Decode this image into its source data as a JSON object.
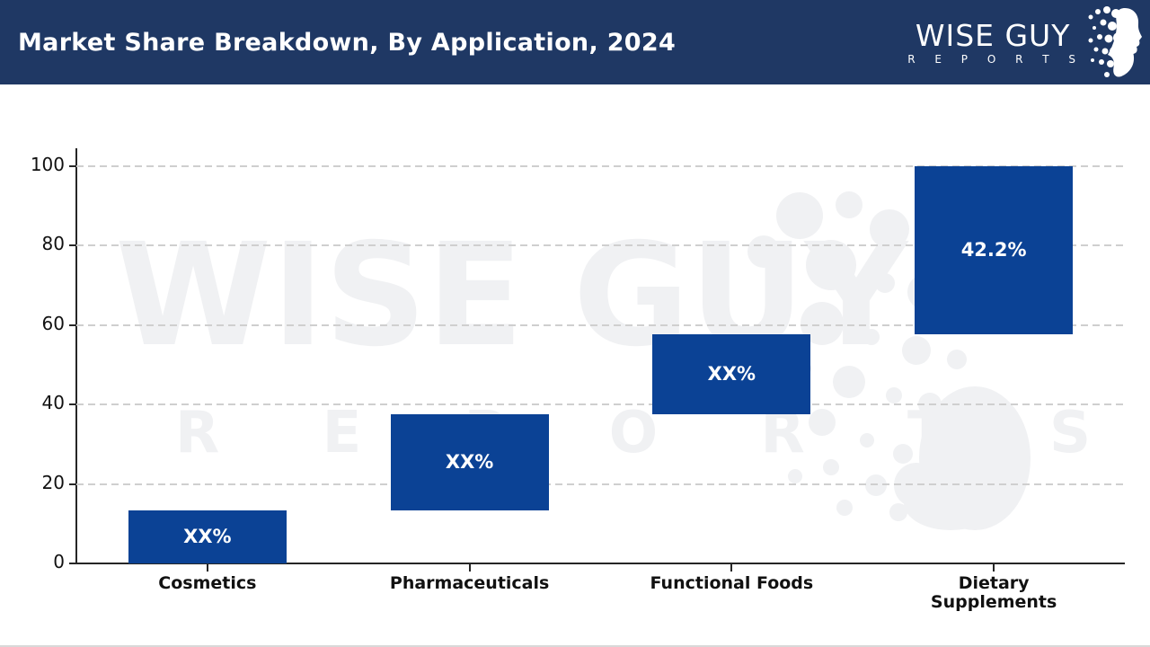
{
  "header": {
    "title": "Market Share Breakdown, By Application, 2024",
    "logo": {
      "line1": "WISE GUY",
      "line2": "R E P O R T S",
      "icon": "face-profile-dots-icon"
    }
  },
  "watermark": {
    "line1": "WISE GUY",
    "line2": "R E P O R T S",
    "icon": "face-profile-dots-icon"
  },
  "colors": {
    "header_bg": "#1f3864",
    "bar": "#0b4295",
    "watermark": "#f0f1f3",
    "gridline": "#cfcfcf",
    "axis": "#262626",
    "bar_label_text": "#ffffff",
    "title_text": "#ffffff"
  },
  "chart_data": {
    "type": "bar",
    "subtype": "waterfall",
    "title": "Market Share Breakdown, By Application, 2024",
    "categories": [
      "Cosmetics",
      "Pharmaceuticals",
      "Functional Foods",
      "Dietary Supplements"
    ],
    "segments": [
      {
        "category": "Cosmetics",
        "start": 0,
        "end": 13.3,
        "value": 13.3,
        "label": "XX%"
      },
      {
        "category": "Pharmaceuticals",
        "start": 13.3,
        "end": 37.5,
        "value": 24.2,
        "label": "XX%"
      },
      {
        "category": "Functional Foods",
        "start": 37.5,
        "end": 57.8,
        "value": 20.3,
        "label": "XX%"
      },
      {
        "category": "Dietary Supplements",
        "start": 57.8,
        "end": 100,
        "value": 42.2,
        "label": "42.2%"
      }
    ],
    "xlabel": "",
    "ylabel": "",
    "y_ticks": [
      0,
      20,
      40,
      60,
      80,
      100
    ],
    "ylim": [
      0,
      104.5
    ],
    "grid": "horizontal-dashed",
    "legend": "none",
    "bar_color": "#0b4295"
  }
}
